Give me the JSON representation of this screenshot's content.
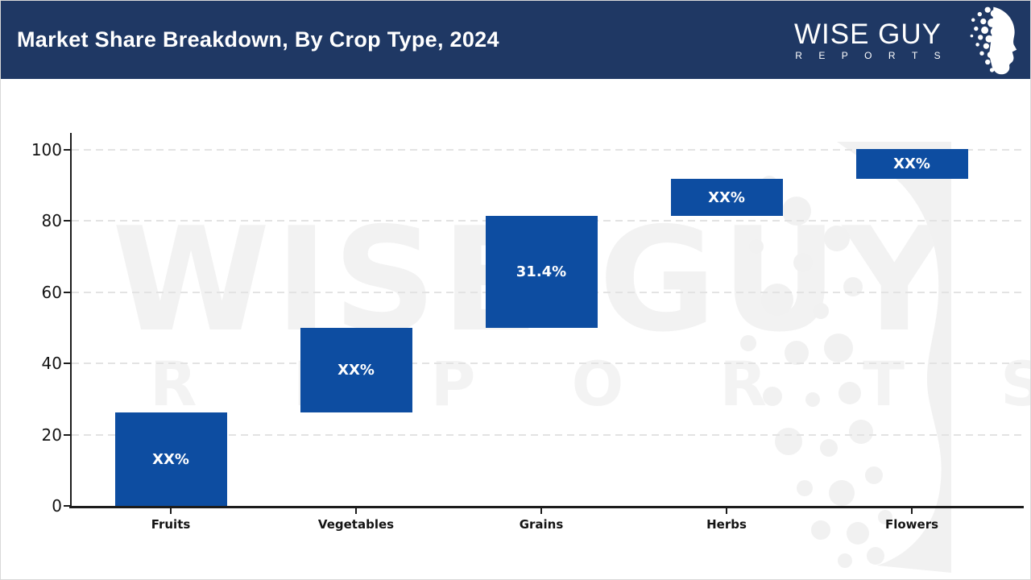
{
  "header": {
    "title": "Market Share Breakdown, By Crop Type, 2024",
    "logo": {
      "line1": "WISE GUY",
      "line2": "REPORTS"
    }
  },
  "watermark": {
    "line1": "WISE GUY",
    "line2": "REPORTS"
  },
  "colors": {
    "header_bg": "#1f3864",
    "bar": "#0d4da1",
    "bar_label": "#ffffff",
    "grid": "#e3e3e3",
    "axis": "#1c1c1c",
    "watermark": "#f2f2f2"
  },
  "chart_data": {
    "type": "bar",
    "subtype": "waterfall",
    "title": "Market Share Breakdown, By Crop Type, 2024",
    "xlabel": "",
    "ylabel": "",
    "categories": [
      "Fruits",
      "Vegetables",
      "Grains",
      "Herbs",
      "Flowers"
    ],
    "segments": [
      {
        "category": "Fruits",
        "start": 0,
        "end": 26.2,
        "label": "XX%"
      },
      {
        "category": "Vegetables",
        "start": 26.2,
        "end": 50.0,
        "label": "XX%"
      },
      {
        "category": "Grains",
        "start": 50.0,
        "end": 81.4,
        "label": "31.4%"
      },
      {
        "category": "Herbs",
        "start": 81.4,
        "end": 91.8,
        "label": "XX%"
      },
      {
        "category": "Flowers",
        "start": 91.8,
        "end": 100.2,
        "label": "XX%"
      }
    ],
    "yticks": [
      0,
      20,
      40,
      60,
      80,
      100
    ],
    "gridline_values": [
      20,
      40,
      60,
      80,
      100
    ],
    "ylim": [
      0,
      104.5
    ],
    "grid": "horizontal-dashed",
    "legend": "none",
    "bar_color": "#0d4da1",
    "label_color": "#ffffff"
  }
}
